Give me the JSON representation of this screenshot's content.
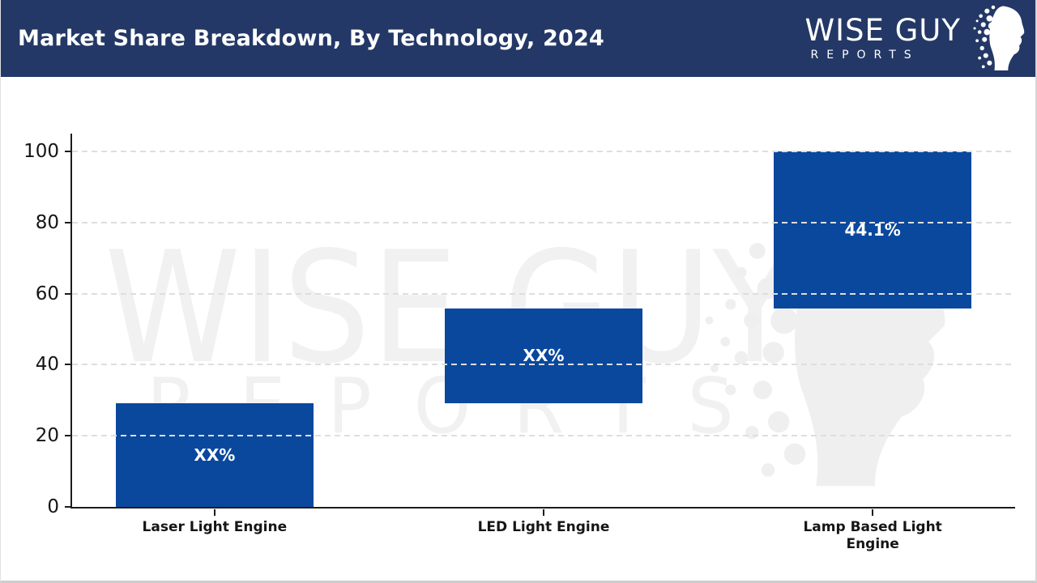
{
  "header": {
    "title": "Market Share Breakdown, By Technology, 2024",
    "bg_color": "#233866",
    "logo": {
      "line1": "WISE GUY",
      "line2": "REPORTS"
    }
  },
  "watermark": {
    "line1": "WISE GUY",
    "line2": "REPORTS"
  },
  "chart_data": {
    "type": "bar",
    "subtype": "floating-waterfall",
    "title": "Market Share Breakdown, By Technology, 2024",
    "categories": [
      "Laser Light Engine",
      "LED Light Engine",
      "Lamp Based Light Engine"
    ],
    "segments": [
      {
        "category": "Laser Light Engine",
        "start": 0,
        "end": 29.2,
        "label": "XX%"
      },
      {
        "category": "LED Light Engine",
        "start": 29.2,
        "end": 55.9,
        "label": "XX%"
      },
      {
        "category": "Lamp Based Light Engine",
        "start": 55.9,
        "end": 100,
        "label": "44.1%"
      }
    ],
    "yticks": [
      0,
      20,
      40,
      60,
      80,
      100
    ],
    "ylim": [
      0,
      105
    ],
    "xlabel": "",
    "ylabel": "",
    "grid": "dashed-horizontal",
    "legend": "none",
    "bar_color": "#09489d",
    "bar_value_label_color": "#ffffff",
    "axis_color": "#1c1c1c",
    "gridline_color": "#dedede",
    "watermark_color": "#f1f1f1"
  }
}
